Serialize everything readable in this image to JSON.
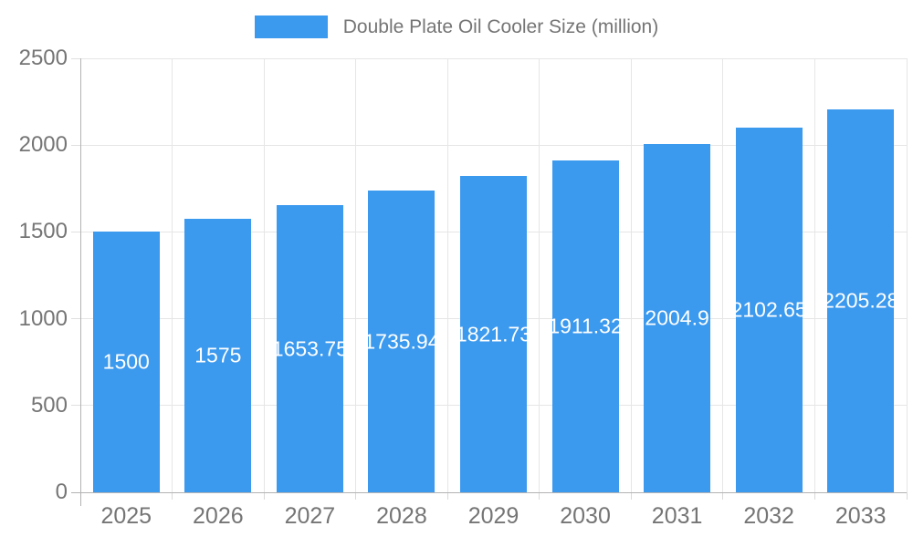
{
  "chart_data": {
    "type": "bar",
    "title": "",
    "legend": "Double Plate Oil Cooler Size (million)",
    "legend_position": "top",
    "series_name": "Double Plate Oil Cooler Size (million)",
    "categories": [
      "2025",
      "2026",
      "2027",
      "2028",
      "2029",
      "2030",
      "2031",
      "2032",
      "2033"
    ],
    "values": [
      1500,
      1575,
      1653.75,
      1735.94,
      1821.73,
      1911.32,
      2004.9,
      2102.65,
      2205.28
    ],
    "value_labels": [
      "1500",
      "1575",
      "1653.75",
      "1735.94",
      "1821.73",
      "1911.32",
      "2004.9",
      "2102.65",
      "2205.28"
    ],
    "xlabel": "",
    "ylabel": "",
    "ylim": [
      0,
      2500
    ],
    "yticks": [
      0,
      500,
      1000,
      1500,
      2000,
      2500
    ],
    "grid": true,
    "colors": {
      "bar": "#3B99EE",
      "grid": "#e6e6e6",
      "axis": "#b3b3b3",
      "axis_label": "#757575",
      "bar_label": "#ffffff",
      "background": "#ffffff"
    }
  }
}
